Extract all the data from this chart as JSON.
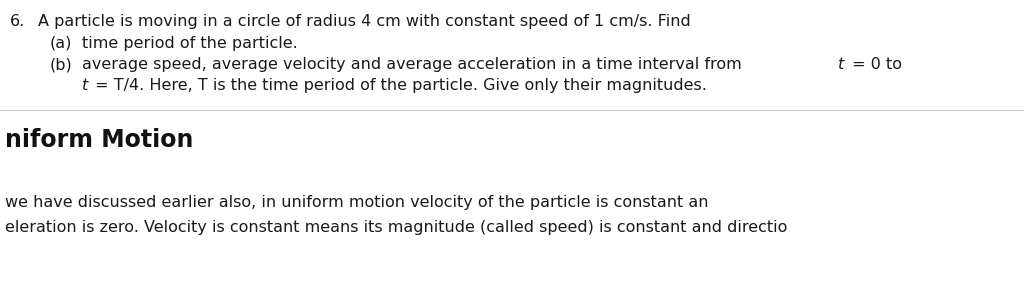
{
  "bg_color": "#ffffff",
  "font_color": "#1a1a1a",
  "title_color": "#111111",
  "q_num": "6.",
  "q_text": "A particle is moving in a circle of radius 4 cm with constant speed of 1 cm/s. Find",
  "pa_label": "(a)",
  "pa_text": "time period of the particle.",
  "pb_label": "(b)",
  "pb_text1_pre": "average speed, average velocity and average acceleration in a time interval from ",
  "pb_text1_t": "t",
  "pb_text1_post": " = 0 to",
  "pb_text2_pre": "t",
  "pb_text2_post": " = T/4. Here, T is the time period of the particle. Give only their magnitudes.",
  "section_title": "niform Motion",
  "body1": "we have discussed earlier also, in uniform motion velocity of the particle is constant an",
  "body2": "eleration is zero. Velocity is constant means its magnitude (called speed) is constant and directio",
  "divider_color": "#cccccc",
  "divider_lw": 0.8,
  "font_size": 11.5,
  "title_font_size": 17,
  "body_font_size": 11.5
}
